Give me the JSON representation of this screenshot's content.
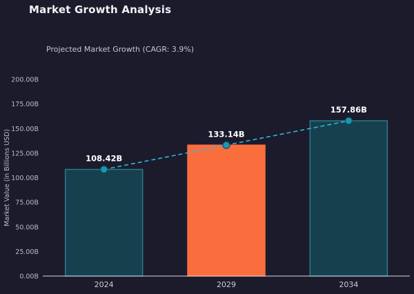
{
  "chart_data": {
    "type": "bar",
    "title": "Market Growth Analysis",
    "subtitle": "Projected Market Growth (CAGR: 3.9%)",
    "ylabel": "Market Value (in Billions USD)",
    "categories": [
      "2024",
      "2029",
      "2034"
    ],
    "values": [
      108.42,
      133.14,
      157.86
    ],
    "value_labels": [
      "108.42B",
      "133.14B",
      "157.86B"
    ],
    "ylim": [
      0,
      200
    ],
    "ytick_step": 25,
    "ytick_labels": [
      "0.00B",
      "25.00B",
      "50.00B",
      "75.00B",
      "100.00B",
      "125.00B",
      "150.00B",
      "175.00B",
      "200.00B"
    ],
    "grid": false,
    "legend": "none",
    "colors": {
      "background": "#1b1b2c",
      "bar_fills": [
        "#16404e",
        "#fa6e3e",
        "#16404e"
      ],
      "bar_borders": [
        "#2c7a8f",
        "#fa6e3e",
        "#2c7a8f"
      ],
      "trend_line": "#2fb8da",
      "marker_fill": "#1d96b2",
      "marker_border": "#0e4f5e",
      "value_label": "#ffffff",
      "axis_text": "#b9b9c6",
      "baseline": "#d8d8e0"
    }
  }
}
